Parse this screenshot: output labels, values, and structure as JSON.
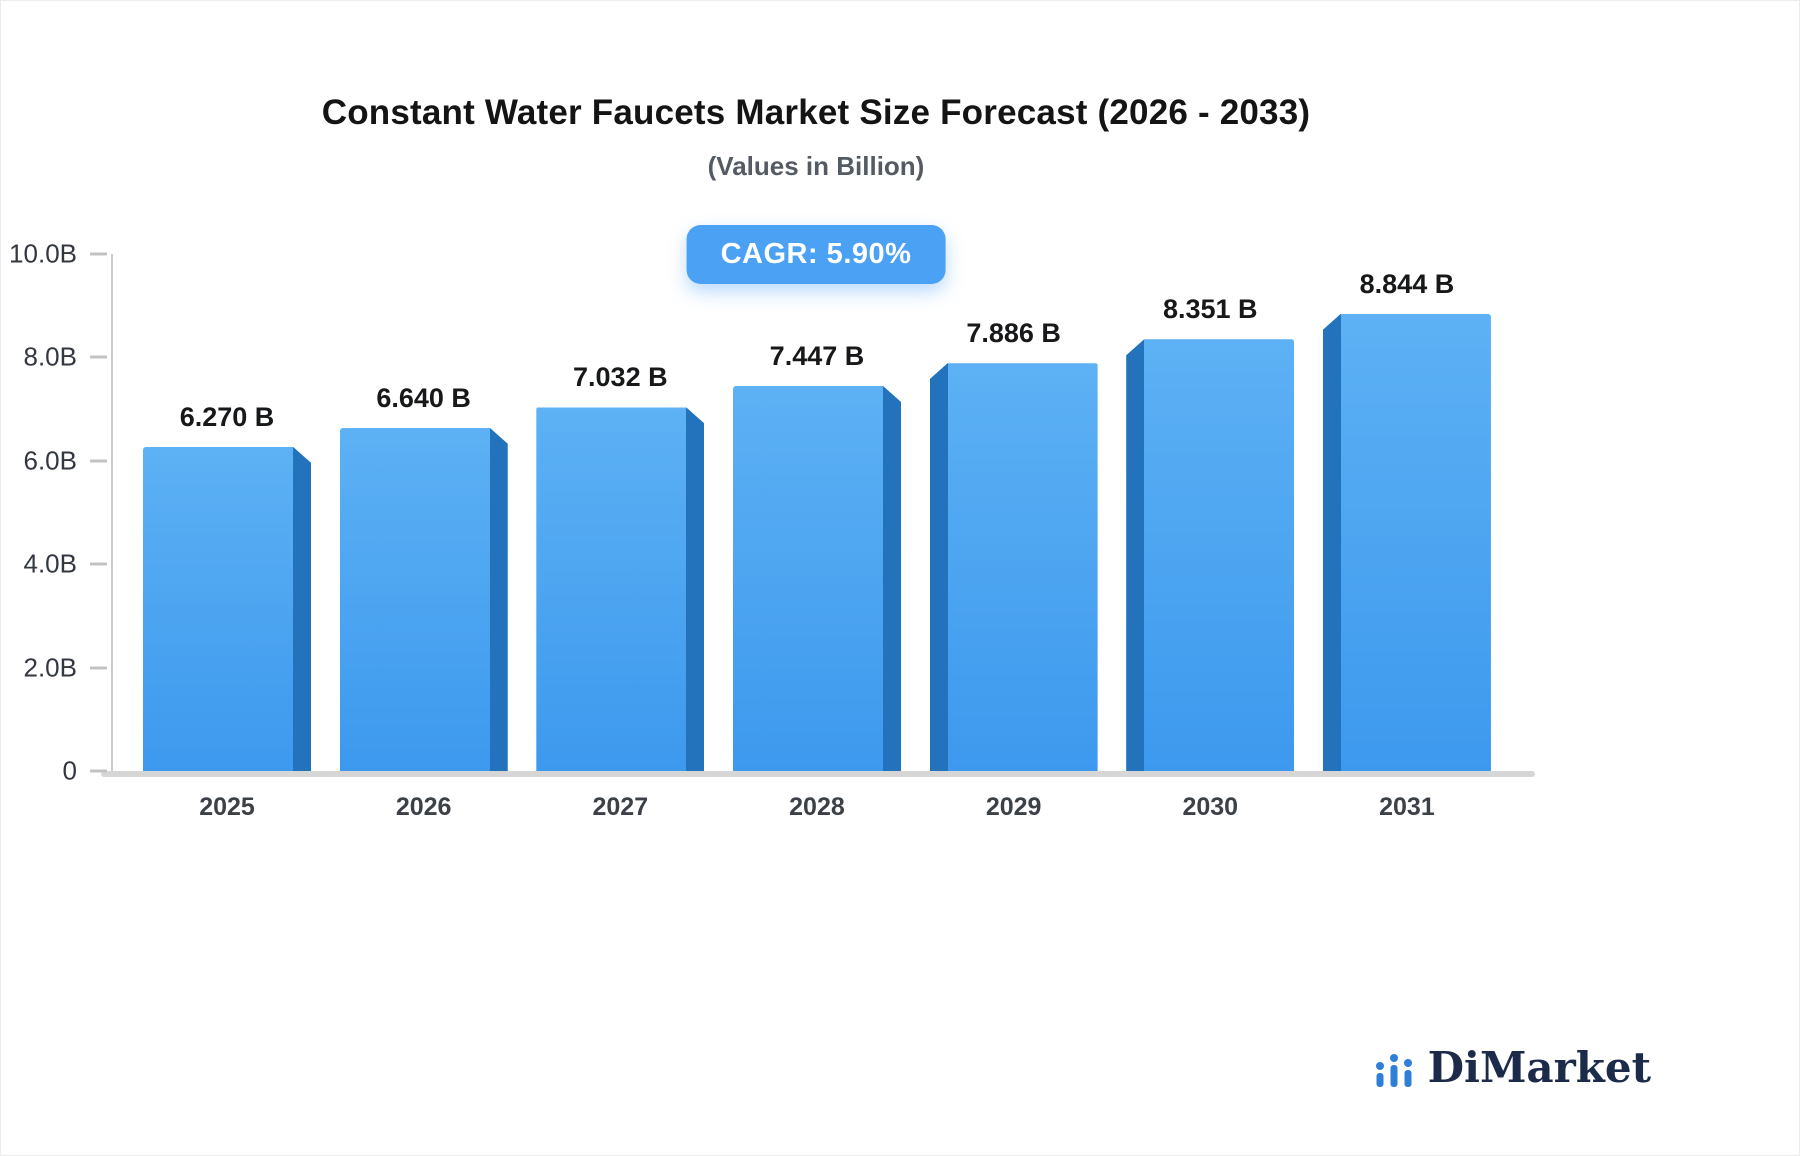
{
  "title": "Constant Water Faucets Market Size Forecast (2026 - 2033)",
  "subtitle": "(Values in Billion)",
  "cagr_badge": "CAGR: 5.90%",
  "chart_data": {
    "type": "bar",
    "categories": [
      "2025",
      "2026",
      "2027",
      "2028",
      "2029",
      "2030",
      "2031"
    ],
    "values": [
      6.27,
      6.64,
      7.032,
      7.447,
      7.886,
      8.351,
      8.844
    ],
    "value_labels": [
      "6.270 B",
      "6.640 B",
      "7.032 B",
      "7.447 B",
      "7.886 B",
      "8.351 B",
      "8.844 B"
    ],
    "ylim": [
      0,
      10
    ],
    "yticks": [
      {
        "label": "10.0B",
        "value": 10
      },
      {
        "label": "8.0B",
        "value": 8
      },
      {
        "label": "6.0B",
        "value": 6
      },
      {
        "label": "4.0B",
        "value": 4
      },
      {
        "label": "2.0B",
        "value": 2
      },
      {
        "label": "0",
        "value": 0
      }
    ],
    "grid": false,
    "legend": false,
    "bar_color_top": "#5DB1F4",
    "bar_color_bottom": "#3D99EE",
    "bar_edge_color": "#2273BC"
  },
  "logo": {
    "name": "DiMarket"
  },
  "colors": {
    "badge_bg": "#4BA1F4",
    "badge_text": "#FFFFFF",
    "axis": "#CCCCCC",
    "title": "#141414",
    "subtitle": "#555B63",
    "logo_text": "#1C2B4A",
    "logo_icon": "#2E7FD8"
  }
}
